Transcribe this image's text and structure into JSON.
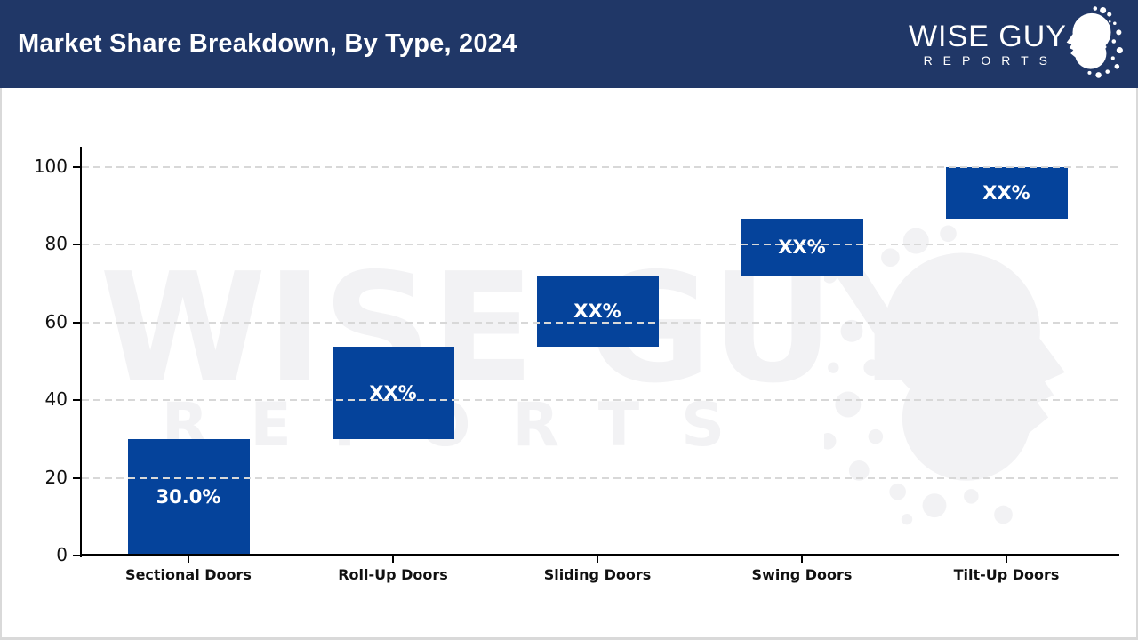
{
  "header": {
    "title": "Market Share Breakdown, By Type, 2024",
    "logo": {
      "name": "WISE GUY",
      "tagline": "REPORTS"
    }
  },
  "watermark": {
    "name": "WISE GUY",
    "tagline": "REPORTS"
  },
  "chart_data": {
    "type": "bar",
    "subtype": "waterfall",
    "title": "Market Share Breakdown, By Type, 2024",
    "categories": [
      "Sectional Doors",
      "Roll-Up Doors",
      "Sliding Doors",
      "Swing Doors",
      "Tilt-Up Doors"
    ],
    "segments": [
      {
        "category": "Sectional Doors",
        "start": 0,
        "end": 30,
        "value_label": "30.0%"
      },
      {
        "category": "Roll-Up Doors",
        "start": 30,
        "end": 53.7,
        "value_label": "XX%"
      },
      {
        "category": "Sliding Doors",
        "start": 53.7,
        "end": 72,
        "value_label": "XX%"
      },
      {
        "category": "Swing Doors",
        "start": 72,
        "end": 86.6,
        "value_label": "XX%"
      },
      {
        "category": "Tilt-Up Doors",
        "start": 86.6,
        "end": 100,
        "value_label": "XX%"
      }
    ],
    "xlabel": "",
    "ylabel": "",
    "yticks": [
      0,
      20,
      40,
      60,
      80,
      100
    ],
    "ylim": [
      0,
      105
    ],
    "grid": "horizontal-dashed",
    "legend": null,
    "bar_color": "#05439B"
  },
  "colors": {
    "header_bg": "#203767",
    "bar": "#05439B",
    "grid": "#d8d8d8",
    "axis": "#000000",
    "watermark": "#f2f2f4",
    "page_bg": "#ffffff",
    "border": "#d9d9d9",
    "title_text": "#ffffff"
  }
}
